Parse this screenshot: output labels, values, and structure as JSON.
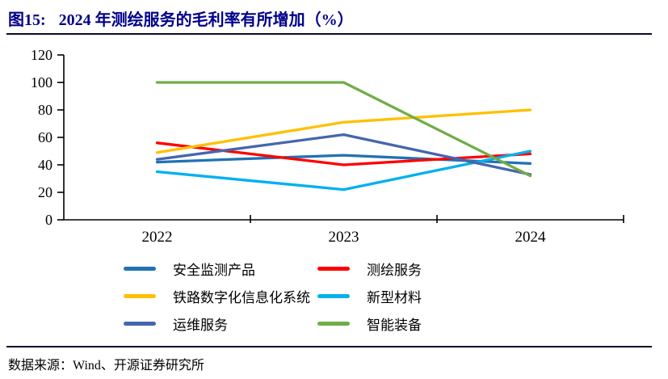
{
  "header": {
    "figure_label": "图15:",
    "title": "2024 年测绘服务的毛利率有所增加（%）",
    "title_color": "#00008B"
  },
  "footer": {
    "source": "数据来源：Wind、开源证券研究所"
  },
  "chart_data": {
    "type": "line",
    "title": "2024 年测绘服务的毛利率有所增加（%）",
    "categories": [
      "2022",
      "2023",
      "2024"
    ],
    "series": [
      {
        "name": "安全监测产品",
        "color": "#1F72B5",
        "values": [
          42,
          47,
          41
        ]
      },
      {
        "name": "测绘服务",
        "color": "#FF0000",
        "values": [
          56,
          40,
          48
        ]
      },
      {
        "name": "铁路数字化信息化系统",
        "color": "#FFC000",
        "values": [
          49,
          71,
          80
        ]
      },
      {
        "name": "新型材料",
        "color": "#00B0F0",
        "values": [
          35,
          22,
          50
        ]
      },
      {
        "name": "运维服务",
        "color": "#4466AD",
        "values": [
          44,
          62,
          33
        ]
      },
      {
        "name": "智能装备",
        "color": "#70AD47",
        "values": [
          100,
          100,
          32
        ]
      }
    ],
    "xlabel": "",
    "ylabel": "",
    "ylim": [
      0,
      120
    ],
    "ytick_step": 20,
    "grid": false,
    "markers": false,
    "legend_position": "bottom",
    "axis_color": "#000000"
  }
}
